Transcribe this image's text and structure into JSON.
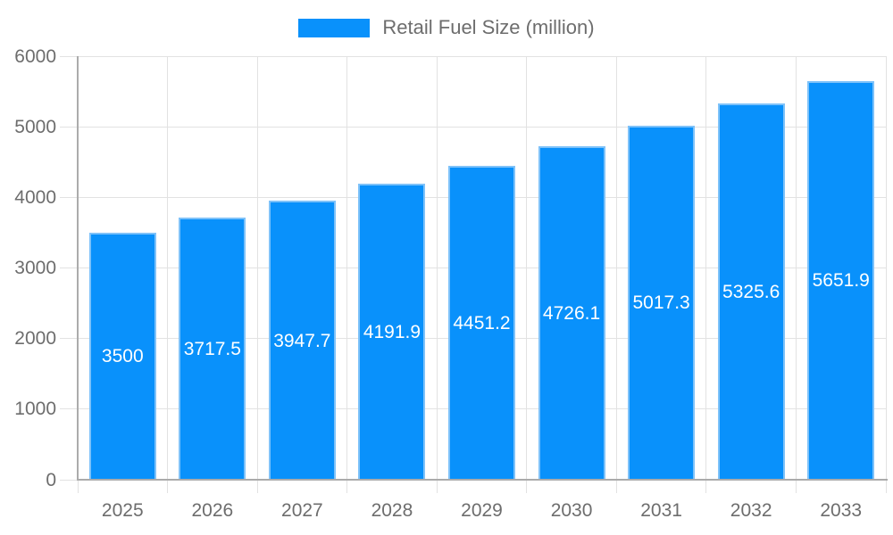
{
  "legend": {
    "label": "Retail Fuel Size (million)"
  },
  "chart_data": {
    "type": "bar",
    "title": "",
    "xlabel": "",
    "ylabel": "",
    "legend_position": "top",
    "legend_entries": [
      "Retail Fuel Size (million)"
    ],
    "categories": [
      "2025",
      "2026",
      "2027",
      "2028",
      "2029",
      "2030",
      "2031",
      "2032",
      "2033"
    ],
    "series": [
      {
        "name": "Retail Fuel Size (million)",
        "values": [
          3500,
          3717.5,
          3947.7,
          4191.9,
          4451.2,
          4726.1,
          5017.3,
          5325.6,
          5651.9
        ],
        "value_labels": [
          "3500",
          "3717.5",
          "3947.7",
          "4191.9",
          "4451.2",
          "4726.1",
          "5017.3",
          "5325.6",
          "5651.9"
        ]
      }
    ],
    "ylim": [
      0,
      6000
    ],
    "ytick_interval": 1000,
    "ytick_labels": [
      "0",
      "1000",
      "2000",
      "3000",
      "4000",
      "5000",
      "6000"
    ],
    "grid": true,
    "colors": {
      "bar_fill": "#0991fb",
      "bar_border": "#7ec2f9",
      "grid": "#e2e2e2",
      "axis": "#ababab",
      "text": "#6d6d6d",
      "value_text": "#ffffff"
    }
  }
}
